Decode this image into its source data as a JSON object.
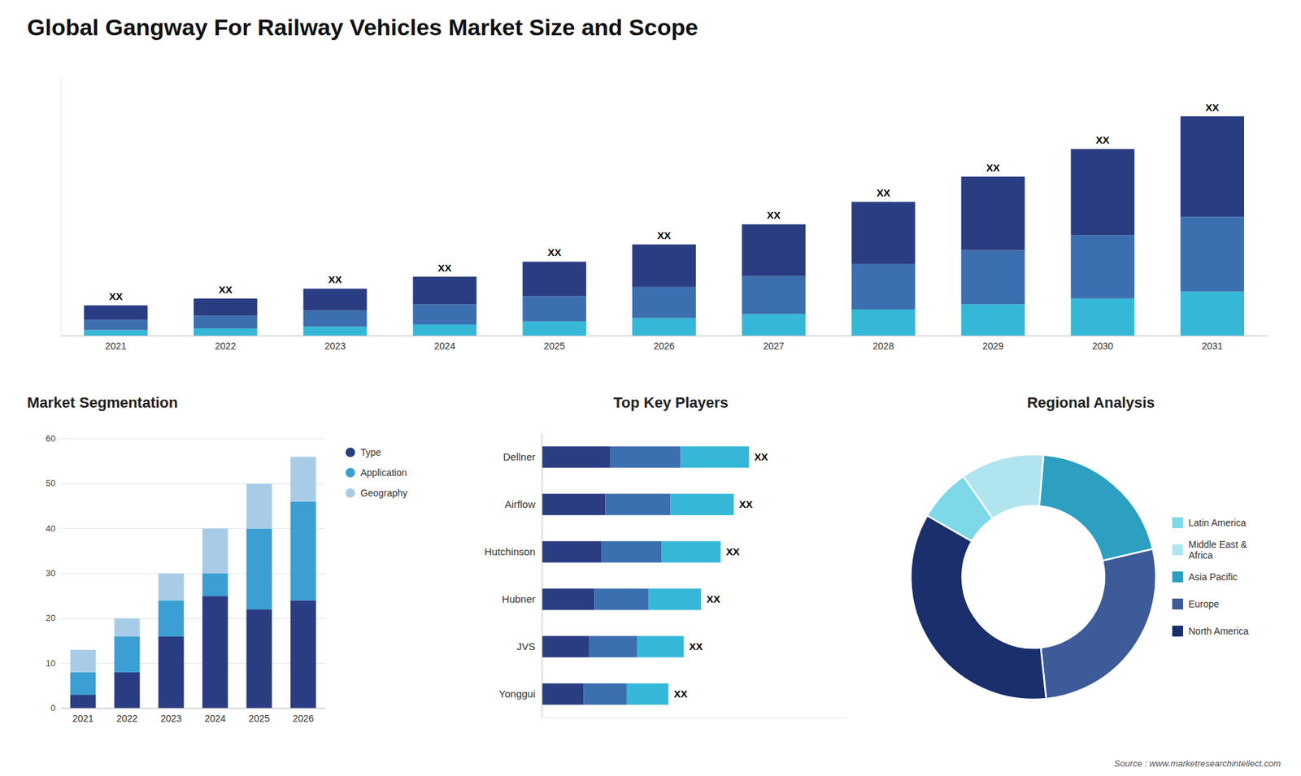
{
  "title": "Global Gangway For Railway Vehicles Market Size and Scope",
  "annotations": [
    "Source : www.marketresearchintellect.com"
  ],
  "chart_data": [
    {
      "type": "bar",
      "stacked": true,
      "categories": [
        "2021",
        "2022",
        "2023",
        "2024",
        "2025",
        "2026",
        "2027",
        "2028",
        "2029",
        "2030",
        "2031"
      ],
      "series": [
        {
          "color": "#35b8d8",
          "values": [
            1.0,
            1.3,
            1.6,
            2.0,
            2.5,
            3.1,
            3.8,
            4.6,
            5.5,
            6.5,
            7.7
          ]
        },
        {
          "color": "#3b6faf",
          "values": [
            1.8,
            2.2,
            2.8,
            3.5,
            4.4,
            5.4,
            6.6,
            7.9,
            9.4,
            11.0,
            13.0
          ]
        },
        {
          "color": "#2a3d82",
          "values": [
            2.5,
            3.0,
            3.8,
            4.8,
            6.0,
            7.4,
            9.0,
            10.8,
            12.8,
            15.0,
            17.5
          ],
          "value_labels": [
            "XX",
            "XX",
            "XX",
            "XX",
            "XX",
            "XX",
            "XX",
            "XX",
            "XX",
            "XX",
            "XX"
          ]
        }
      ],
      "ylim": [
        0,
        45
      ],
      "yticks": [],
      "tick_labels": "x",
      "grid": false
    },
    {
      "type": "bar",
      "stacked": true,
      "title": "Market Segmentation",
      "categories": [
        "2021",
        "2022",
        "2023",
        "2024",
        "2025",
        "2026"
      ],
      "series": [
        {
          "name": "Type",
          "color": "#2a3d82",
          "values": [
            3,
            8,
            16,
            25,
            22,
            24
          ]
        },
        {
          "name": "Application",
          "color": "#3b9fd4",
          "values": [
            5,
            8,
            8,
            5,
            18,
            22
          ]
        },
        {
          "name": "Geography",
          "color": "#a8cce8",
          "values": [
            5,
            4,
            6,
            10,
            10,
            10
          ]
        }
      ],
      "ylim": [
        0,
        60
      ],
      "yticks": [
        0,
        10,
        20,
        30,
        40,
        50,
        60
      ],
      "grid": true,
      "legend": "right"
    },
    {
      "type": "bar",
      "stacked": true,
      "orientation": "horizontal",
      "title": "Top Key Players",
      "categories": [
        "Dellner",
        "Airflow",
        "Hutchinson",
        "Hubner",
        "JVS",
        "Yonggui"
      ],
      "series": [
        {
          "color": "#2a3d82",
          "values": [
            3.135,
            2.904,
            2.706,
            2.409,
            2.145,
            1.914
          ]
        },
        {
          "color": "#3b6faf",
          "values": [
            3.23,
            2.992,
            2.788,
            2.482,
            2.21,
            1.972
          ]
        },
        {
          "color": "#35b8d8",
          "values": [
            3.135,
            2.904,
            2.706,
            2.409,
            2.145,
            1.914
          ],
          "value_labels": [
            "XX",
            "XX",
            "XX",
            "XX",
            "XX",
            "XX"
          ]
        }
      ],
      "xlim": [
        0,
        14
      ],
      "xticks": [],
      "tick_labels": "y",
      "grid": false
    },
    {
      "type": "pie",
      "title": "Regional Analysis",
      "categories": [
        "Latin America",
        "Middle East &\nAfrica",
        "Asia Pacific",
        "Europe",
        "North America"
      ],
      "values": [
        7,
        11,
        20,
        27,
        35
      ],
      "colors": [
        "#7dd8e8",
        "#b0e4ee",
        "#2d9fc0",
        "#3d5a99",
        "#1a2f6b"
      ],
      "legend": "right"
    }
  ]
}
